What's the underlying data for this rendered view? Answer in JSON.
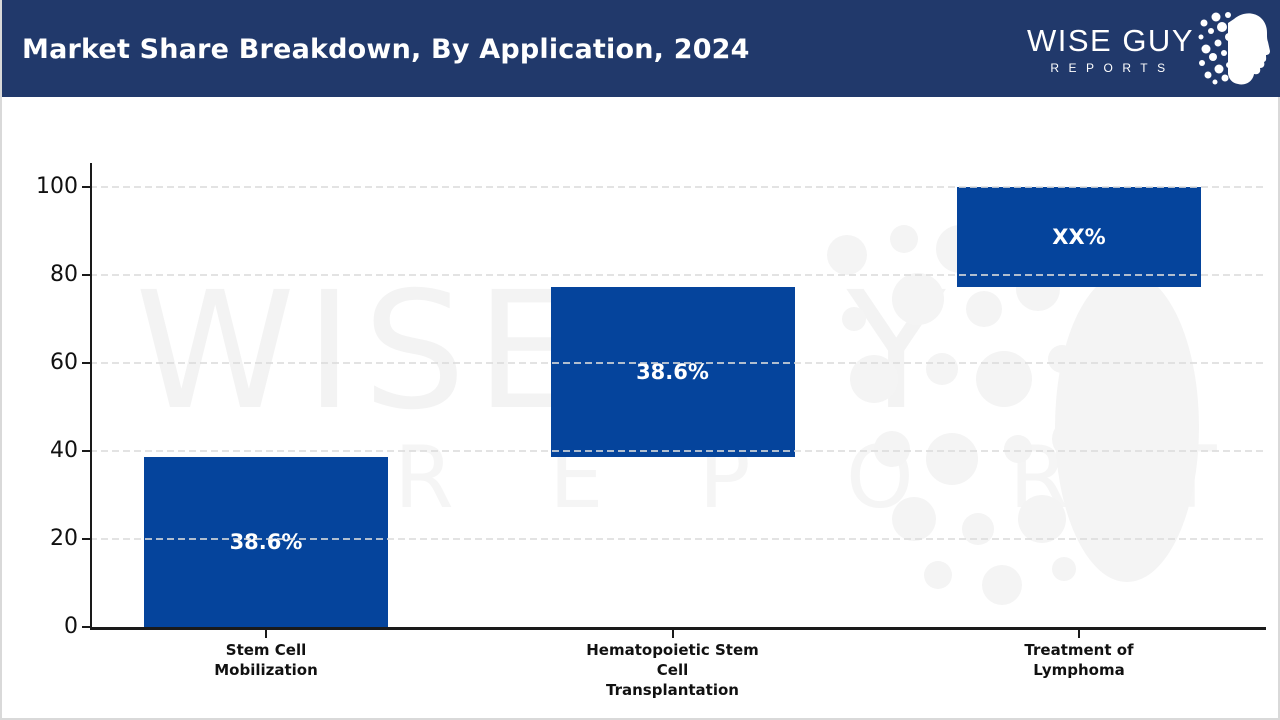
{
  "header": {
    "title": "Market Share Breakdown, By Application, 2024",
    "bg_color": "#21396b",
    "logo": {
      "line1": "WISE GUY",
      "line2": "REPORTS"
    }
  },
  "watermark": {
    "line1": "WISE G  Y",
    "line2": "R E P O R T S"
  },
  "chart_data": {
    "type": "bar",
    "subtype": "waterfall",
    "title": "Market Share Breakdown, By Application, 2024",
    "categories": [
      "Stem Cell Mobilization",
      "Hematopoietic Stem Cell Transplantation",
      "Treatment of Lymphoma"
    ],
    "category_label_lines": [
      [
        "Stem Cell",
        "Mobilization"
      ],
      [
        "Hematopoietic Stem",
        "Cell",
        "Transplantation"
      ],
      [
        "Treatment of",
        "Lymphoma"
      ]
    ],
    "series": [
      {
        "name": "Market share (%)",
        "segments": [
          {
            "start": 0,
            "end": 38.6,
            "label": "38.6%"
          },
          {
            "start": 38.6,
            "end": 77.2,
            "label": "38.6%"
          },
          {
            "start": 77.2,
            "end": 100,
            "label": "XX%"
          }
        ]
      }
    ],
    "yticks": [
      0,
      20,
      40,
      60,
      80,
      100
    ],
    "ylim": [
      0,
      105.5
    ],
    "xlabel": "",
    "ylabel": "",
    "legend": "none",
    "grid": {
      "horizontal": true,
      "style": "dashed",
      "color": "#dcdcdc",
      "on_top_of_bars": true
    },
    "bar_color": "#05449c",
    "bar_label_color": "#ffffff",
    "axis_color": "#1a1a1a"
  }
}
